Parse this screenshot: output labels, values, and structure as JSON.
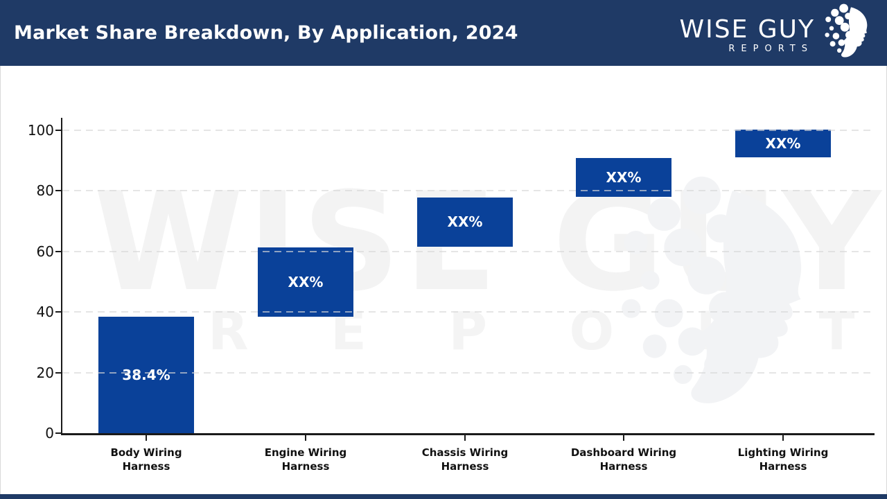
{
  "header": {
    "title": "Market Share Breakdown, By Application, 2024",
    "bg_color": "#1f3a66",
    "logo": {
      "line1": "WISE GUY",
      "line2": "REPORTS"
    }
  },
  "watermark": {
    "line1": "WISE GUY",
    "line2": "R E P O R T S"
  },
  "chart_data": {
    "type": "bar",
    "subtype": "waterfall",
    "title": "Market Share Breakdown, By Application, 2024",
    "unit": "percent market share",
    "categories": [
      "Body Wiring Harness",
      "Engine Wiring Harness",
      "Chassis Wiring Harness",
      "Dashboard Wiring Harness",
      "Lighting Wiring Harness"
    ],
    "bars": [
      {
        "category": "Body Wiring Harness",
        "start": 0,
        "end": 38.4,
        "label": "38.4%"
      },
      {
        "category": "Engine Wiring Harness",
        "start": 38.4,
        "end": 61.2,
        "label": "XX%"
      },
      {
        "category": "Chassis Wiring Harness",
        "start": 61.5,
        "end": 77.8,
        "label": "XX%"
      },
      {
        "category": "Dashboard Wiring Harness",
        "start": 77.9,
        "end": 90.8,
        "label": "XX%"
      },
      {
        "category": "Lighting Wiring Harness",
        "start": 91.0,
        "end": 100.1,
        "label": "XX%"
      }
    ],
    "note": "Waterfall-style market share chart; only the first segment value (38.4%) is revealed, remaining labels masked as XX%. Start/end cumulative values estimated from gridlines.",
    "yticks": [
      0,
      20,
      40,
      60,
      80,
      100
    ],
    "ylim": [
      0,
      104
    ],
    "xlabel": "",
    "ylabel": "",
    "grid": "horizontal dashed",
    "legend": "none",
    "bar_color": "#0a4199",
    "bar_label_color": "#ffffff"
  },
  "footer": {
    "bg_color": "#1f3a66"
  }
}
